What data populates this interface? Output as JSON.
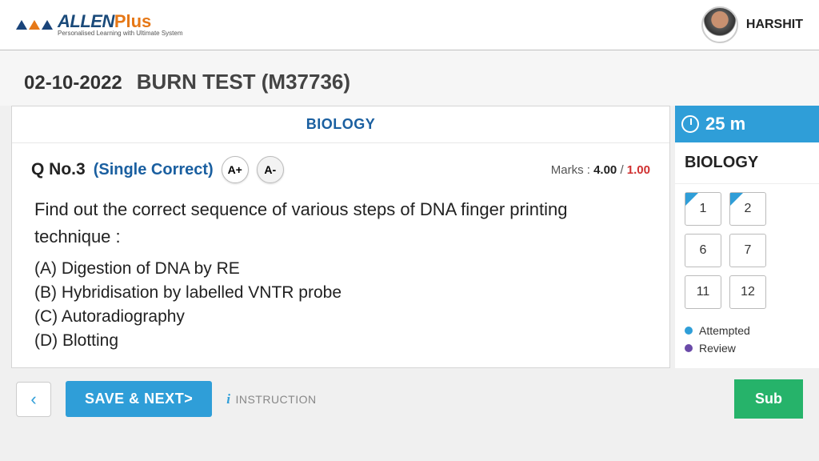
{
  "brand": {
    "name": "ALLEN",
    "suffix": "Plus",
    "tagline": "Personalised Learning with Ultimate System"
  },
  "user": {
    "name": "HARSHIT"
  },
  "test": {
    "date": "02-10-2022",
    "title": "BURN TEST (M37736)"
  },
  "subject_bar": "BIOLOGY",
  "question": {
    "no_label": "Q No.3",
    "type_label": "(Single Correct)",
    "font_plus": "A+",
    "font_minus": "A-",
    "marks_label": "Marks :",
    "marks_pos": "4.00",
    "marks_sep": "/",
    "marks_neg": "1.00",
    "text": "Find out the correct sequence of various steps of DNA finger printing technique :",
    "options": {
      "a": "(A) Digestion of DNA by RE",
      "b": "(B) Hybridisation by labelled VNTR probe",
      "c": "(C) Autoradiography",
      "d": "(D) Blotting"
    }
  },
  "side": {
    "timer": "25 m",
    "subject": "BIOLOGY",
    "palette": [
      "1",
      "2",
      "6",
      "7",
      "11",
      "12"
    ],
    "legend_attempted": "Attempted",
    "legend_review": "Review"
  },
  "footer": {
    "save_next": "SAVE & NEXT>",
    "instruction": "INSTRUCTION",
    "submit": "Sub"
  },
  "colors": {
    "brand_blue": "#1a4a7a",
    "brand_orange": "#e67817",
    "primary": "#2f9ed8",
    "green": "#26b36a",
    "neg": "#d03030"
  }
}
